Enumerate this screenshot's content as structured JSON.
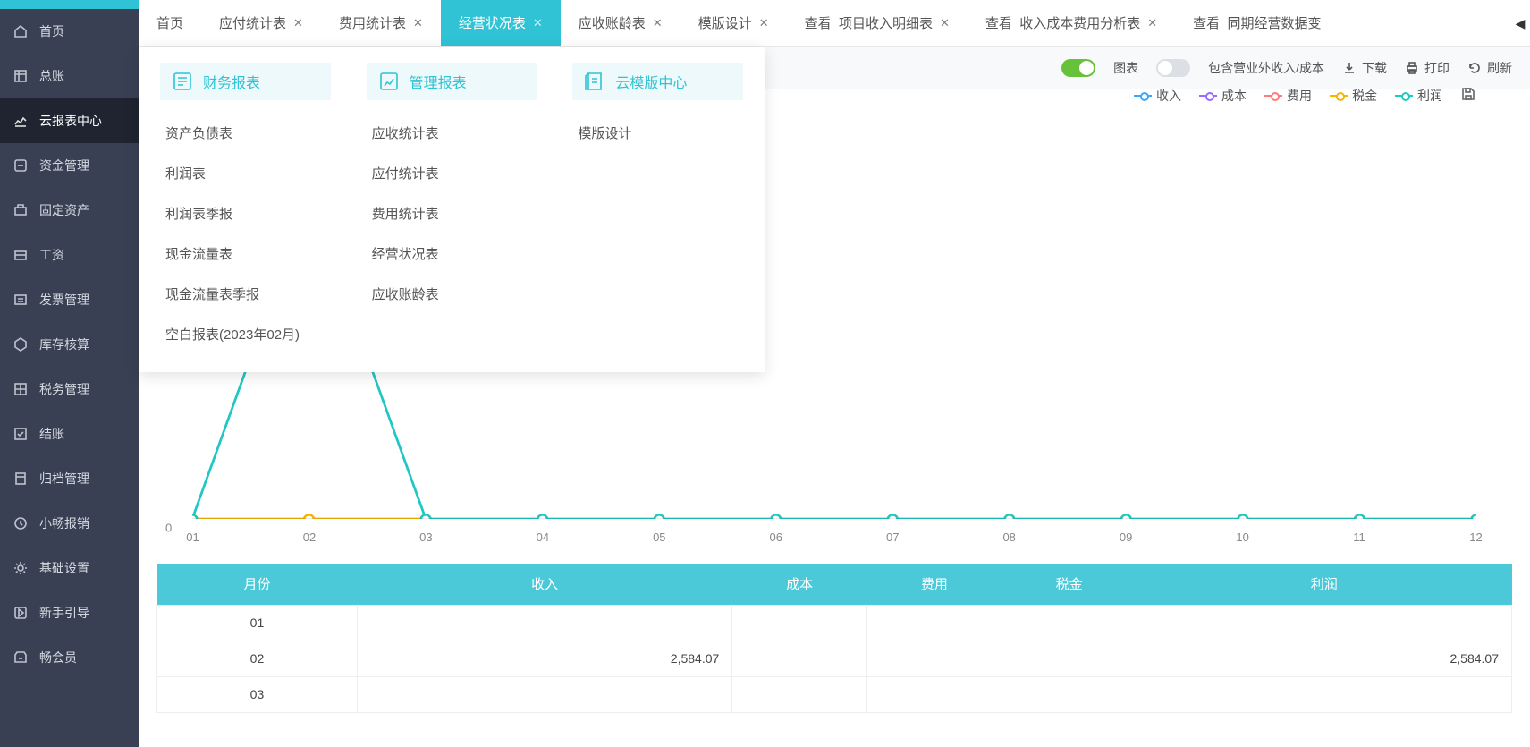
{
  "sidebar": {
    "items": [
      {
        "label": "首页"
      },
      {
        "label": "总账"
      },
      {
        "label": "云报表中心",
        "active": true
      },
      {
        "label": "资金管理"
      },
      {
        "label": "固定资产"
      },
      {
        "label": "工资"
      },
      {
        "label": "发票管理"
      },
      {
        "label": "库存核算"
      },
      {
        "label": "税务管理"
      },
      {
        "label": "结账"
      },
      {
        "label": "归档管理"
      },
      {
        "label": "小畅报销"
      },
      {
        "label": "基础设置"
      },
      {
        "label": "新手引导"
      },
      {
        "label": "畅会员"
      }
    ]
  },
  "tabs": {
    "items": [
      {
        "label": "首页",
        "closable": false
      },
      {
        "label": "应付统计表",
        "closable": true
      },
      {
        "label": "费用统计表",
        "closable": true
      },
      {
        "label": "经营状况表",
        "closable": true,
        "active": true
      },
      {
        "label": "应收账龄表",
        "closable": true
      },
      {
        "label": "模版设计",
        "closable": true
      },
      {
        "label": "查看_项目收入明细表",
        "closable": true
      },
      {
        "label": "查看_收入成本费用分析表",
        "closable": true
      },
      {
        "label": "查看_同期经营数据变",
        "closable": false
      }
    ]
  },
  "mega": {
    "columns": [
      {
        "title": "财务报表",
        "items": [
          "资产负债表",
          "利润表",
          "利润表季报",
          "现金流量表",
          "现金流量表季报",
          "空白报表(2023年02月)"
        ]
      },
      {
        "title": "管理报表",
        "items": [
          "应收统计表",
          "应付统计表",
          "费用统计表",
          "经营状况表",
          "应收账龄表"
        ]
      },
      {
        "title": "云模版中心",
        "items": [
          "模版设计"
        ]
      }
    ]
  },
  "toolbar": {
    "chart_switch_label": "图表",
    "extra_switch_label": "包含营业外收入/成本",
    "download": "下载",
    "print": "打印",
    "refresh": "刷新"
  },
  "legend": {
    "series": [
      {
        "name": "收入",
        "color": "#3aa6ff"
      },
      {
        "name": "成本",
        "color": "#9a6bff"
      },
      {
        "name": "费用",
        "color": "#ff7b7b"
      },
      {
        "name": "税金",
        "color": "#f7b500"
      },
      {
        "name": "利润",
        "color": "#1fc9c1"
      }
    ]
  },
  "chart": {
    "y_zero_label": "0",
    "x_ticks": [
      "01",
      "02",
      "03",
      "04",
      "05",
      "06",
      "07",
      "08",
      "09",
      "10",
      "11",
      "12"
    ],
    "series": {
      "收入": {
        "color": "#3aa6ff",
        "values": [
          0,
          2584.07,
          0,
          0,
          0,
          0,
          0,
          0,
          0,
          0,
          0,
          0
        ]
      },
      "成本": {
        "color": "#9a6bff",
        "values": [
          0,
          0,
          0,
          0,
          0,
          0,
          0,
          0,
          0,
          0,
          0,
          0
        ]
      },
      "费用": {
        "color": "#ff7b7b",
        "values": [
          0,
          0,
          0,
          0,
          0,
          0,
          0,
          0,
          0,
          0,
          0,
          0
        ]
      },
      "税金": {
        "color": "#f7b500",
        "values": [
          0,
          0,
          0,
          0,
          0,
          0,
          0,
          0,
          0,
          0,
          0,
          0
        ]
      },
      "利润": {
        "color": "#1fc9c1",
        "values": [
          0,
          2584.07,
          0,
          0,
          0,
          0,
          0,
          0,
          0,
          0,
          0,
          0
        ]
      }
    },
    "ylim": [
      0,
      3000
    ]
  },
  "table": {
    "columns": [
      "月份",
      "收入",
      "成本",
      "费用",
      "税金",
      "利润"
    ],
    "rows": [
      {
        "month": "01",
        "收入": "",
        "成本": "",
        "费用": "",
        "税金": "",
        "利润": ""
      },
      {
        "month": "02",
        "收入": "2,584.07",
        "成本": "",
        "费用": "",
        "税金": "",
        "利润": "2,584.07"
      },
      {
        "month": "03",
        "收入": "",
        "成本": "",
        "费用": "",
        "税金": "",
        "利润": ""
      }
    ]
  }
}
